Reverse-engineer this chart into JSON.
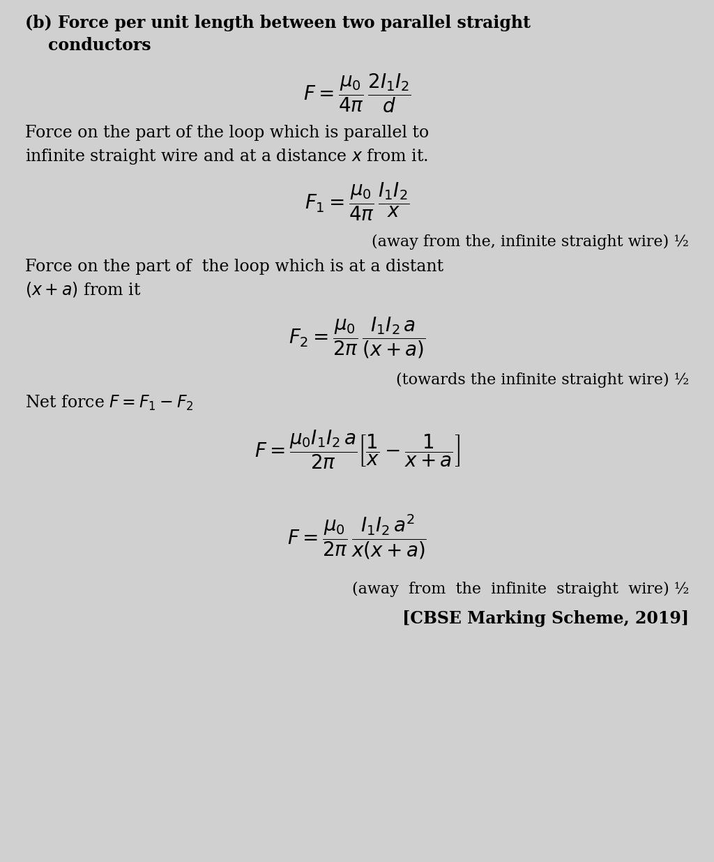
{
  "bg_color": "#d0d0d0",
  "text_color": "#000000",
  "figsize": [
    10.24,
    12.36
  ],
  "dpi": 100,
  "half": "½",
  "title_line1": "(b) Force per unit length between two parallel straight",
  "title_line2": "    conductors",
  "para1_line1": "Force on the part of the loop which is parallel to",
  "para1_line2": "infinite straight wire and at a distance ",
  "para1_line2b": " from it.",
  "away1": "(away from the, infinite straight wire) ",
  "para2_line1": "Force on the part of  the loop which is at a distant",
  "para2_line2a": "(",
  "para2_line2b": " + ",
  "para2_line2c": ") from it",
  "towards": "(towards the infinite straight wire) ",
  "net_force_text": "Net force ",
  "away2": "(away  from  the  infinite  straight  wire) ",
  "cbse": "[CBSE Marking Scheme, 2019]"
}
